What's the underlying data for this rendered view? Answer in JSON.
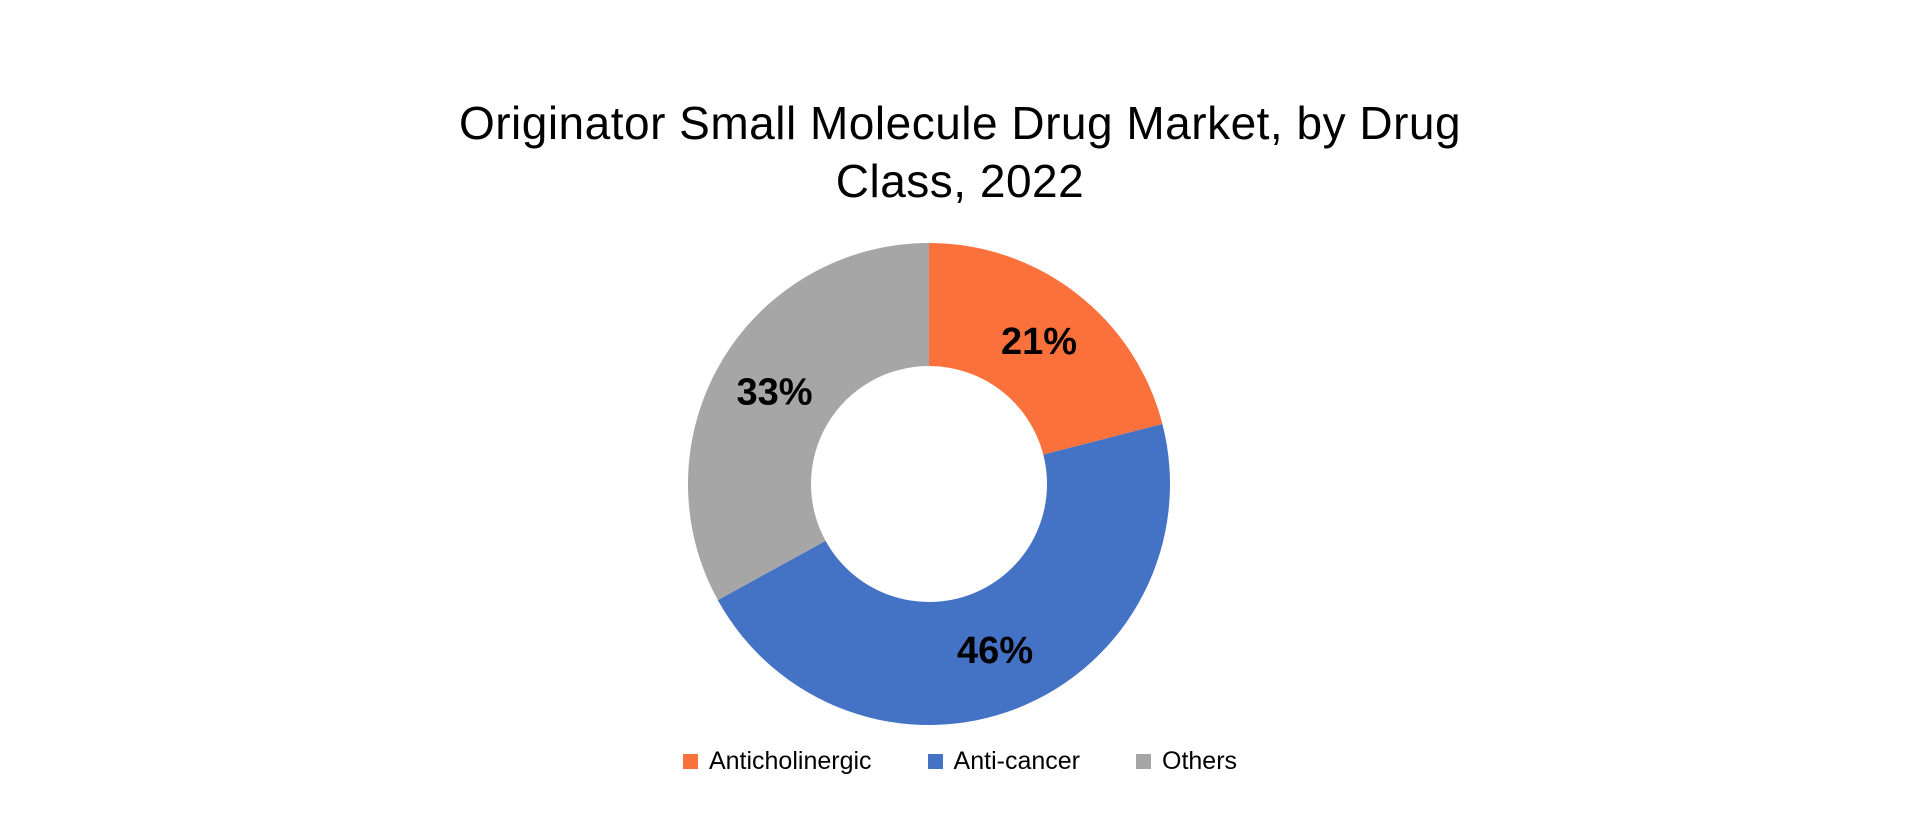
{
  "page": {
    "background_color": "#ffffff"
  },
  "chart_data": {
    "type": "pie",
    "subtype": "donut",
    "title": "Originator Small Molecule Drug Market, by Drug Class, 2022",
    "title_lines": [
      "Originator Small Molecule Drug Market, by Drug",
      "Class, 2022"
    ],
    "categories": [
      "Anticholinergic",
      "Anti-cancer",
      "Others"
    ],
    "values": [
      21,
      46,
      33
    ],
    "unit": "%",
    "data_labels": [
      "21%",
      "46%",
      "33%"
    ],
    "colors": [
      "#FA713C",
      "#4472C4",
      "#A6A6A6"
    ],
    "start_angle_deg": 0,
    "direction": "clockwise",
    "inner_radius_ratio": 0.49,
    "legend_position": "bottom",
    "legend": [
      {
        "label": "Anticholinergic",
        "color": "#FA713C"
      },
      {
        "label": "Anti-cancer",
        "color": "#4472C4"
      },
      {
        "label": "Others",
        "color": "#A6A6A6"
      }
    ],
    "text_color": "#000000"
  }
}
